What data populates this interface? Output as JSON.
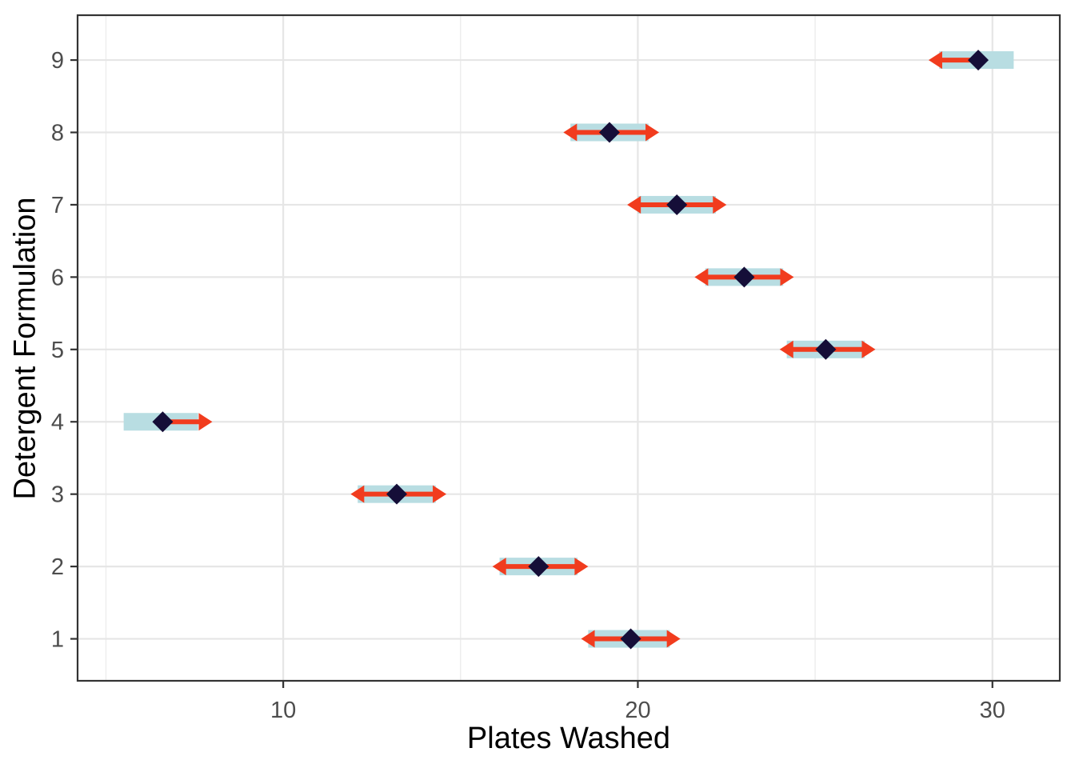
{
  "chart_data": {
    "type": "scatter",
    "subtype": "estimated-means-with-ci-bands-and-comparison-arrows",
    "title": "",
    "xlabel": "Plates Washed",
    "ylabel": "Detergent Formulation",
    "xlim": [
      4.2,
      31.9
    ],
    "ylim": [
      0.42,
      9.62
    ],
    "x_major_ticks": [
      10,
      20,
      30
    ],
    "x_minor_gridlines": [
      5,
      15,
      25
    ],
    "y_ticks": [
      1,
      2,
      3,
      4,
      5,
      6,
      7,
      8,
      9
    ],
    "grid": "on",
    "legend": "none",
    "points": [
      {
        "formulation": 1,
        "mean": 19.8,
        "ci_lower": 18.6,
        "ci_upper": 20.9,
        "arrow_left": 18.4,
        "arrow_right": 21.2
      },
      {
        "formulation": 2,
        "mean": 17.2,
        "ci_lower": 16.1,
        "ci_upper": 18.3,
        "arrow_left": 15.9,
        "arrow_right": 18.6
      },
      {
        "formulation": 3,
        "mean": 13.2,
        "ci_lower": 12.1,
        "ci_upper": 14.3,
        "arrow_left": 11.9,
        "arrow_right": 14.6
      },
      {
        "formulation": 4,
        "mean": 6.6,
        "ci_lower": 5.5,
        "ci_upper": 7.6,
        "arrow_left": null,
        "arrow_right": 8.0
      },
      {
        "formulation": 5,
        "mean": 25.3,
        "ci_lower": 24.2,
        "ci_upper": 26.4,
        "arrow_left": 24.0,
        "arrow_right": 26.7
      },
      {
        "formulation": 6,
        "mean": 23.0,
        "ci_lower": 21.9,
        "ci_upper": 24.1,
        "arrow_left": 21.6,
        "arrow_right": 24.4
      },
      {
        "formulation": 7,
        "mean": 21.1,
        "ci_lower": 20.0,
        "ci_upper": 22.2,
        "arrow_left": 19.7,
        "arrow_right": 22.5
      },
      {
        "formulation": 8,
        "mean": 19.2,
        "ci_lower": 18.1,
        "ci_upper": 20.3,
        "arrow_left": 17.9,
        "arrow_right": 20.6
      },
      {
        "formulation": 9,
        "mean": 29.6,
        "ci_lower": 28.5,
        "ci_upper": 30.6,
        "arrow_left": 28.2,
        "arrow_right": null
      }
    ],
    "colors": {
      "ci_band": "#b8dde2",
      "comparison_arrow": "#f13c1e",
      "point_diamond": "#150e38",
      "grid_major": "#e6e6e6",
      "grid_minor": "#ededed",
      "panel_border": "#333333",
      "tick_mark": "#333333",
      "tick_label": "#4d4d4d",
      "axis_title": "#000000",
      "background": "#ffffff"
    }
  }
}
